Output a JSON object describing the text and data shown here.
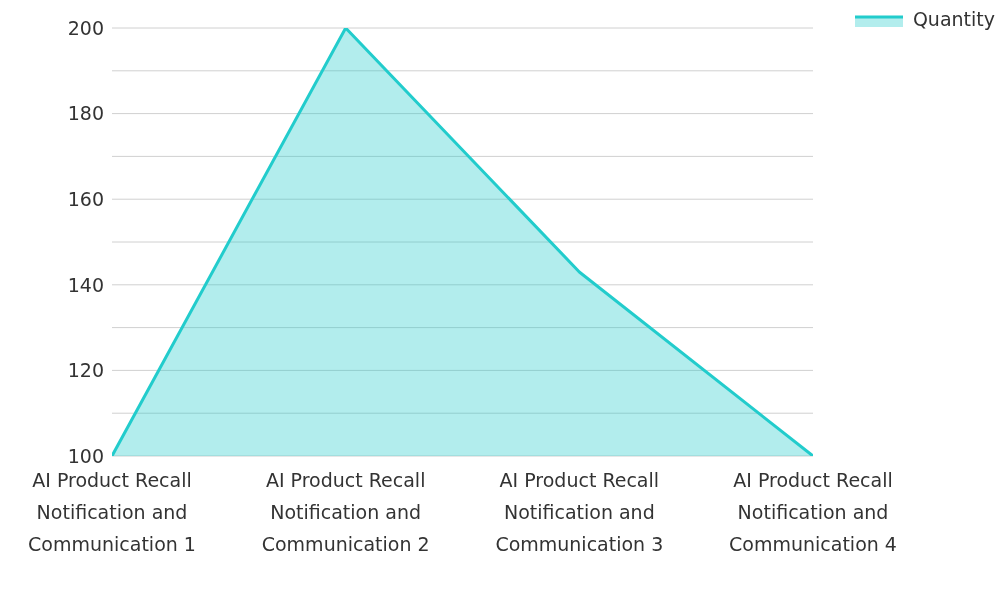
{
  "chart_data": {
    "type": "area",
    "categories": [
      "AI Product Recall Notification and Communication 1",
      "AI Product Recall Notification and Communication 2",
      "AI Product Recall Notification and Communication 3",
      "AI Product Recall Notification and Communication 4"
    ],
    "series": [
      {
        "name": "Quantity",
        "color": "#22cccc",
        "values": [
          100,
          200,
          143,
          100
        ]
      }
    ],
    "ylim": [
      100,
      200
    ],
    "yticks": [
      100,
      {
        "value": 110,
        "label": null
      },
      120,
      {
        "value": 130,
        "label": null
      },
      140,
      {
        "value": 150,
        "label": null
      },
      160,
      {
        "value": 170,
        "label": null
      },
      180,
      {
        "value": 190,
        "label": null
      },
      200
    ],
    "grid": "y",
    "legend": "top right",
    "marker": "none"
  }
}
